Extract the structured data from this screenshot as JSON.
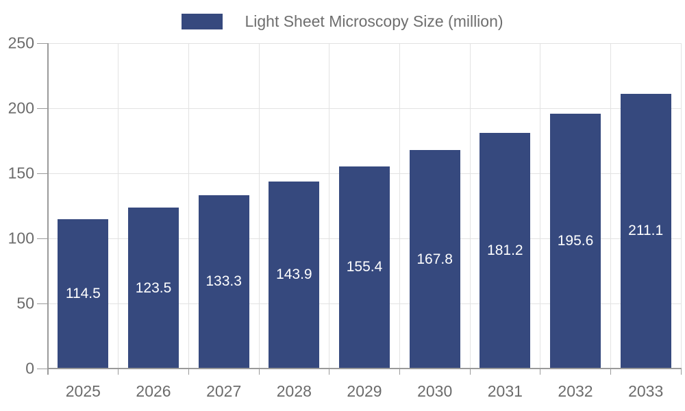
{
  "chart_data": {
    "type": "bar",
    "title": "Light Sheet Microscopy Size (million)",
    "legend_entries": [
      "Light Sheet Microscopy Size (million)"
    ],
    "legend_position": "top-center",
    "categories": [
      "2025",
      "2026",
      "2027",
      "2028",
      "2029",
      "2030",
      "2031",
      "2032",
      "2033"
    ],
    "values": [
      114.5,
      123.5,
      133.3,
      143.9,
      155.4,
      167.8,
      181.2,
      195.6,
      211.1
    ],
    "value_labels": [
      "114.5",
      "123.5",
      "133.3",
      "143.9",
      "155.4",
      "167.8",
      "181.2",
      "195.6",
      "211.1"
    ],
    "xlabel": "",
    "ylabel": "",
    "ylim": [
      0,
      250
    ],
    "yticks": [
      0,
      50,
      100,
      150,
      200,
      250
    ],
    "ytick_labels": [
      "0",
      "50",
      "100",
      "150",
      "200",
      "250"
    ],
    "grid": true,
    "colors": {
      "bar": "#36497e",
      "value_label": "#ffffff",
      "axis_line": "#9a9a9a",
      "tick_mark": "#9a9a9a",
      "gridline": "#e2e2e2",
      "tick_label_text": "#6b6b6b",
      "legend_text": "#6e6e6e",
      "background": "#ffffff"
    }
  }
}
